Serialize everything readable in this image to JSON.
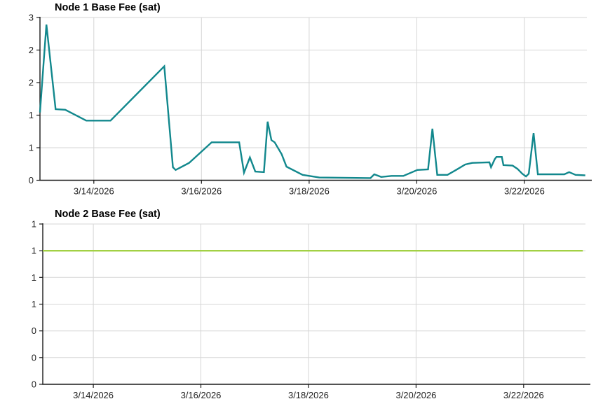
{
  "colors": {
    "background": "#ffffff",
    "grid": "#d6d6d6",
    "axis": "#1a1a1a",
    "tick_label": "#1f1f1f",
    "title": "#000000",
    "node1_line": "#12888d",
    "node2_line": "#a2d044"
  },
  "chart_data": [
    {
      "type": "line",
      "title": "Node 1 Base Fee (sat)",
      "xlabel": "",
      "ylabel": "",
      "x_axis_note": "x measured in days; 0 = 3/13/2026 00:00, ticks every 2 days",
      "xlim": [
        0,
        10.16
      ],
      "ylim": [
        0,
        3
      ],
      "grid": true,
      "legend": "none",
      "x_ticks": [
        {
          "value": 1,
          "label": "3/14/2026"
        },
        {
          "value": 3,
          "label": "3/16/2026"
        },
        {
          "value": 5,
          "label": "3/18/2026"
        },
        {
          "value": 7,
          "label": "3/20/2026"
        },
        {
          "value": 9,
          "label": "3/22/2026"
        }
      ],
      "y_ticks": [
        {
          "value": 3.0,
          "label": "3"
        },
        {
          "value": 2.4,
          "label": "2"
        },
        {
          "value": 1.8,
          "label": "2"
        },
        {
          "value": 1.2,
          "label": "1"
        },
        {
          "value": 0.6,
          "label": "1"
        },
        {
          "value": 0.0,
          "label": "0"
        }
      ],
      "series": [
        {
          "name": "node1-base-fee",
          "color": "#12888d",
          "points": [
            [
              0.0,
              1.25
            ],
            [
              0.12,
              2.87
            ],
            [
              0.29,
              1.31
            ],
            [
              0.47,
              1.3
            ],
            [
              0.86,
              1.1
            ],
            [
              1.31,
              1.1
            ],
            [
              2.31,
              2.1
            ],
            [
              2.47,
              0.24
            ],
            [
              2.52,
              0.19
            ],
            [
              2.77,
              0.32
            ],
            [
              3.19,
              0.7
            ],
            [
              3.7,
              0.7
            ],
            [
              3.79,
              0.14
            ],
            [
              3.9,
              0.42
            ],
            [
              4.0,
              0.16
            ],
            [
              4.16,
              0.15
            ],
            [
              4.23,
              1.08
            ],
            [
              4.3,
              0.74
            ],
            [
              4.36,
              0.7
            ],
            [
              4.49,
              0.48
            ],
            [
              4.58,
              0.25
            ],
            [
              4.88,
              0.1
            ],
            [
              5.19,
              0.05
            ],
            [
              6.14,
              0.04
            ],
            [
              6.21,
              0.11
            ],
            [
              6.34,
              0.06
            ],
            [
              6.53,
              0.08
            ],
            [
              6.75,
              0.08
            ],
            [
              7.01,
              0.19
            ],
            [
              7.21,
              0.2
            ],
            [
              7.29,
              0.95
            ],
            [
              7.38,
              0.1
            ],
            [
              7.57,
              0.1
            ],
            [
              7.73,
              0.19
            ],
            [
              7.9,
              0.29
            ],
            [
              8.03,
              0.32
            ],
            [
              8.35,
              0.33
            ],
            [
              8.38,
              0.24
            ],
            [
              8.45,
              0.39
            ],
            [
              8.48,
              0.43
            ],
            [
              8.58,
              0.43
            ],
            [
              8.61,
              0.28
            ],
            [
              8.78,
              0.27
            ],
            [
              8.87,
              0.21
            ],
            [
              8.96,
              0.12
            ],
            [
              9.03,
              0.07
            ],
            [
              9.08,
              0.12
            ],
            [
              9.17,
              0.87
            ],
            [
              9.25,
              0.11
            ],
            [
              9.55,
              0.11
            ],
            [
              9.74,
              0.11
            ],
            [
              9.83,
              0.15
            ],
            [
              9.95,
              0.1
            ],
            [
              10.13,
              0.09
            ]
          ]
        }
      ]
    },
    {
      "type": "line",
      "title": "Node 2 Base Fee (sat)",
      "xlabel": "",
      "ylabel": "",
      "x_axis_note": "x measured in days; 0 = 3/13/2026 00:00, ticks every 2 days",
      "xlim": [
        0.06,
        10.15
      ],
      "ylim": [
        0,
        1.2
      ],
      "grid": true,
      "legend": "none",
      "x_ticks": [
        {
          "value": 1,
          "label": "3/14/2026"
        },
        {
          "value": 3,
          "label": "3/16/2026"
        },
        {
          "value": 5,
          "label": "3/18/2026"
        },
        {
          "value": 7,
          "label": "3/20/2026"
        },
        {
          "value": 9,
          "label": "3/22/2026"
        }
      ],
      "y_ticks": [
        {
          "value": 1.2,
          "label": "1"
        },
        {
          "value": 1.0,
          "label": "1"
        },
        {
          "value": 0.8,
          "label": "1"
        },
        {
          "value": 0.6,
          "label": "1"
        },
        {
          "value": 0.4,
          "label": "0"
        },
        {
          "value": 0.2,
          "label": "0"
        },
        {
          "value": 0.0,
          "label": "0"
        }
      ],
      "series": [
        {
          "name": "node2-base-fee",
          "color": "#a2d044",
          "points": [
            [
              0.06,
              1.0
            ],
            [
              10.1,
              1.0
            ]
          ]
        }
      ]
    }
  ]
}
